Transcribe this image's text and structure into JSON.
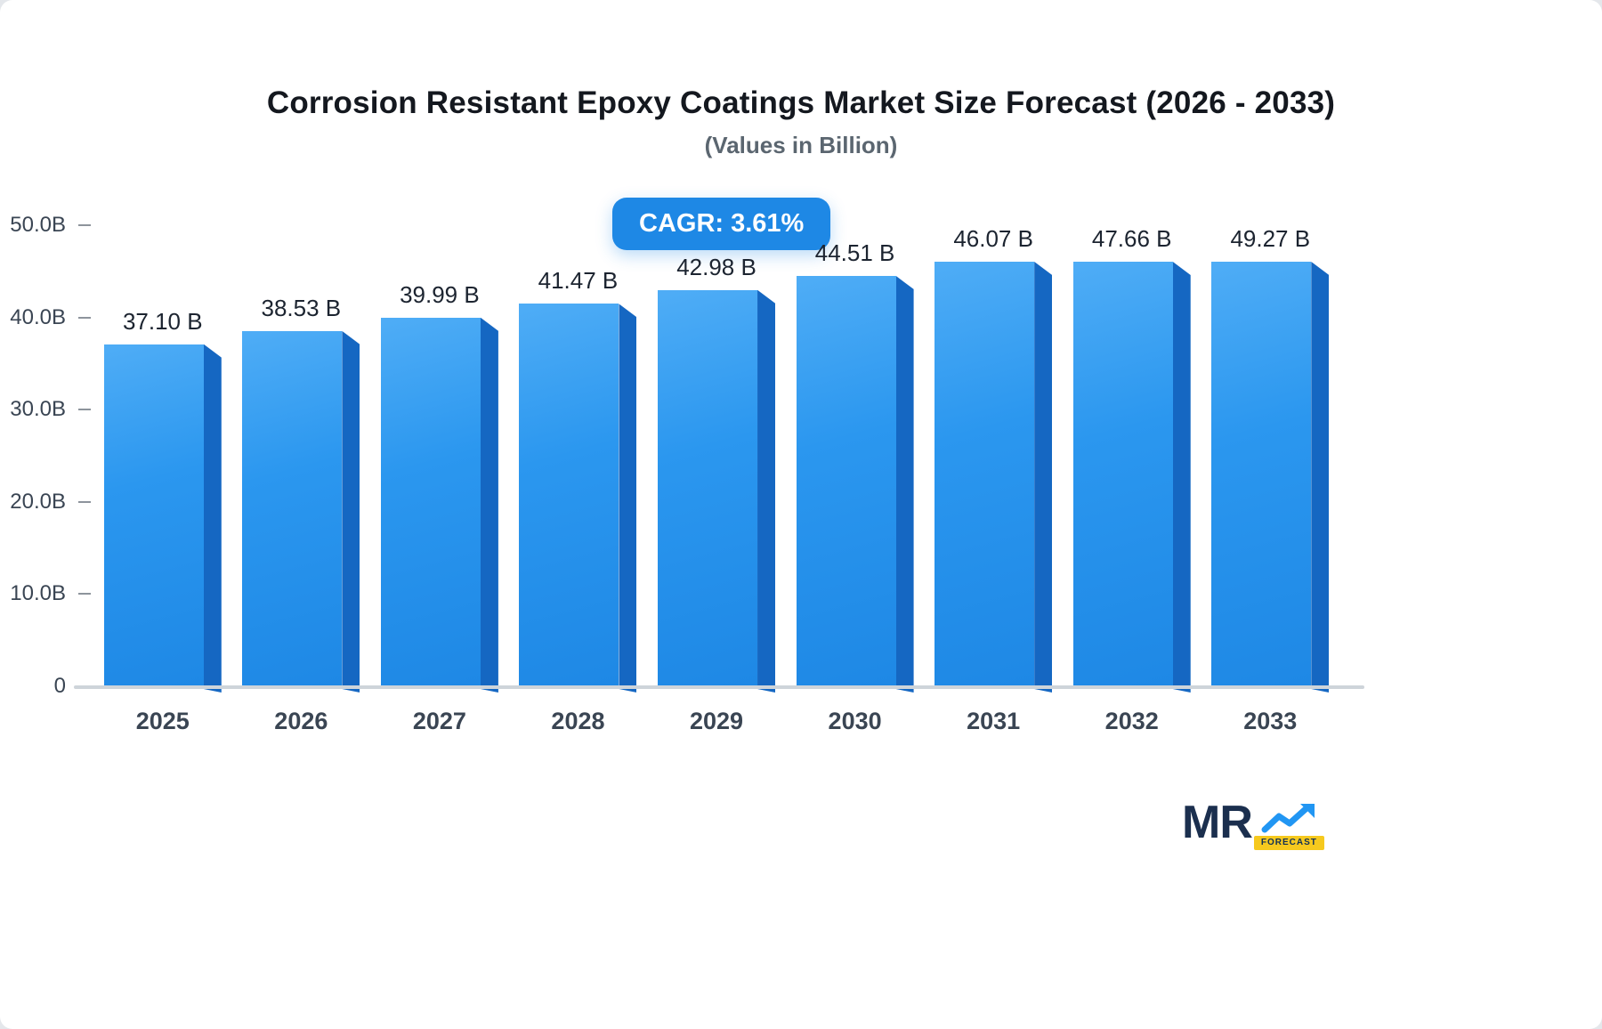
{
  "chart_data": {
    "type": "bar",
    "title": "Corrosion Resistant Epoxy Coatings Market Size Forecast (2026 - 2033)",
    "subtitle": "(Values in Billion)",
    "categories": [
      "2025",
      "2026",
      "2027",
      "2028",
      "2029",
      "2030",
      "2031",
      "2032",
      "2033"
    ],
    "values": [
      37.1,
      38.53,
      39.99,
      41.47,
      42.98,
      44.51,
      46.07,
      47.66,
      49.27
    ],
    "value_labels": [
      "37.10 B",
      "38.53 B",
      "39.99 B",
      "41.47 B",
      "42.98 B",
      "44.51 B",
      "46.07 B",
      "47.66 B",
      "49.27 B"
    ],
    "xlabel": "",
    "ylabel": "",
    "ylim": [
      0,
      50
    ],
    "y_ticks": [
      {
        "value": 50,
        "label": "50.0B"
      },
      {
        "value": 40,
        "label": "40.0B"
      },
      {
        "value": 30,
        "label": "30.0B"
      },
      {
        "value": 20,
        "label": "20.0B"
      },
      {
        "value": 10,
        "label": "10.0B"
      },
      {
        "value": 0,
        "label": "0"
      }
    ],
    "grid": false,
    "legend": "none",
    "annotations": [
      {
        "text": "CAGR: 3.61%"
      }
    ]
  },
  "colors": {
    "bar_face_light": "#4fadf6",
    "bar_face": "#1e88e5",
    "bar_side": "#1567c2",
    "badge_bg": "#1e88e5",
    "badge_text": "#ffffff",
    "title_text": "#14181f",
    "subtitle_text": "#5b6670",
    "axis_text": "#3a4553",
    "baseline": "#ced4da",
    "logo_navy": "#1b2f4e",
    "logo_blue": "#2196f3",
    "logo_yellow": "#f6c91e"
  },
  "logo": {
    "text": "MR",
    "subtext": "FORECAST"
  }
}
